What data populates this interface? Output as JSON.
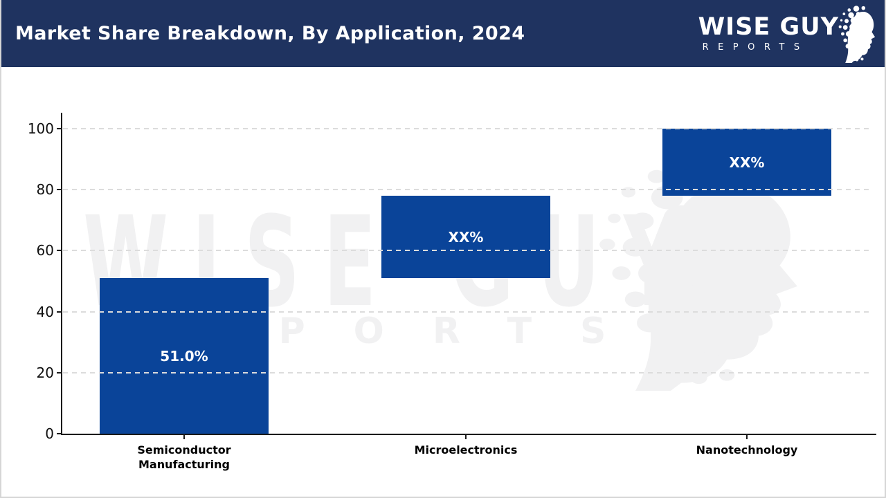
{
  "header": {
    "title": "Market Share Breakdown, By Application, 2024",
    "logo": {
      "line1": "WISE GUY",
      "line2": "REPORTS"
    }
  },
  "watermark": {
    "line1": "WISE GUY",
    "line2": "REPORTS"
  },
  "chart_data": {
    "type": "bar",
    "subtype": "stacked-waterfall",
    "title": "Market Share Breakdown, By Application, 2024",
    "categories": [
      [
        "Semiconductor",
        "Manufacturing"
      ],
      [
        "Microelectronics"
      ],
      [
        "Nanotechnology"
      ]
    ],
    "bars": [
      {
        "label": "51.0%",
        "start": 0,
        "end": 51,
        "value": 51
      },
      {
        "label": "XX%",
        "start": 51,
        "end": 78,
        "value": 27
      },
      {
        "label": "XX%",
        "start": 78,
        "end": 100,
        "value": 22
      }
    ],
    "ylim": [
      0,
      100
    ],
    "yticks": [
      0,
      20,
      40,
      60,
      80,
      100
    ],
    "grid": "horizontal-dashed",
    "legend": "none",
    "colors": {
      "bar": "#0a4499",
      "bar_label": "#ffffff",
      "grid": "#dcdcdc",
      "axis": "#1a1a1a",
      "header_bg": "#1f3360",
      "header_text": "#ffffff",
      "tick_label": "#111111",
      "watermark": "#f1f1f2"
    }
  }
}
